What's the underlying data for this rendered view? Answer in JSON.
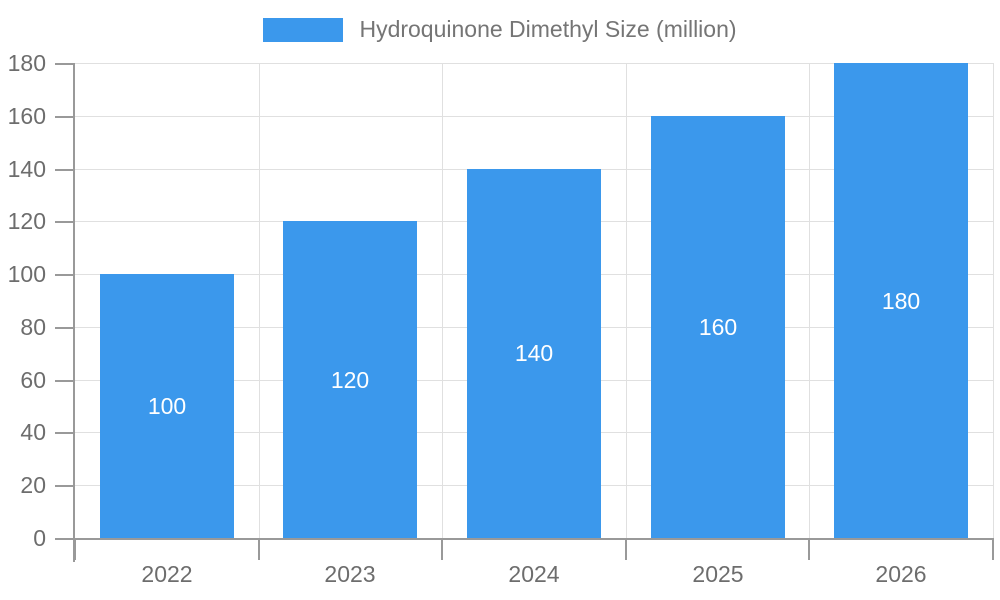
{
  "legend": {
    "label": "Hydroquinone Dimethyl Size (million)"
  },
  "colors": {
    "bar": "#3B98EC",
    "axis_line": "#999999",
    "gridline": "#E0E0E0",
    "tick_label": "#6D6D6D",
    "legend_text": "#757575",
    "bar_label": "#FFFFFF",
    "background": "#FFFFFF"
  },
  "chart_data": {
    "type": "bar",
    "title": "Hydroquinone Dimethyl Size (million)",
    "categories": [
      "2022",
      "2023",
      "2024",
      "2025",
      "2026"
    ],
    "series": [
      {
        "name": "Hydroquinone Dimethyl Size (million)",
        "values": [
          100,
          120,
          140,
          160,
          180
        ]
      }
    ],
    "values": [
      100,
      120,
      140,
      160,
      180
    ],
    "value_labels": [
      "100",
      "120",
      "140",
      "160",
      "180"
    ],
    "xlabel": "",
    "ylabel": "",
    "ylim": [
      0,
      180
    ],
    "ytick_step": 20,
    "yticks": [
      0,
      20,
      40,
      60,
      80,
      100,
      120,
      140,
      160,
      180
    ],
    "grid": true,
    "legend_position": "top-center",
    "value_labels_inside_bars": true
  }
}
